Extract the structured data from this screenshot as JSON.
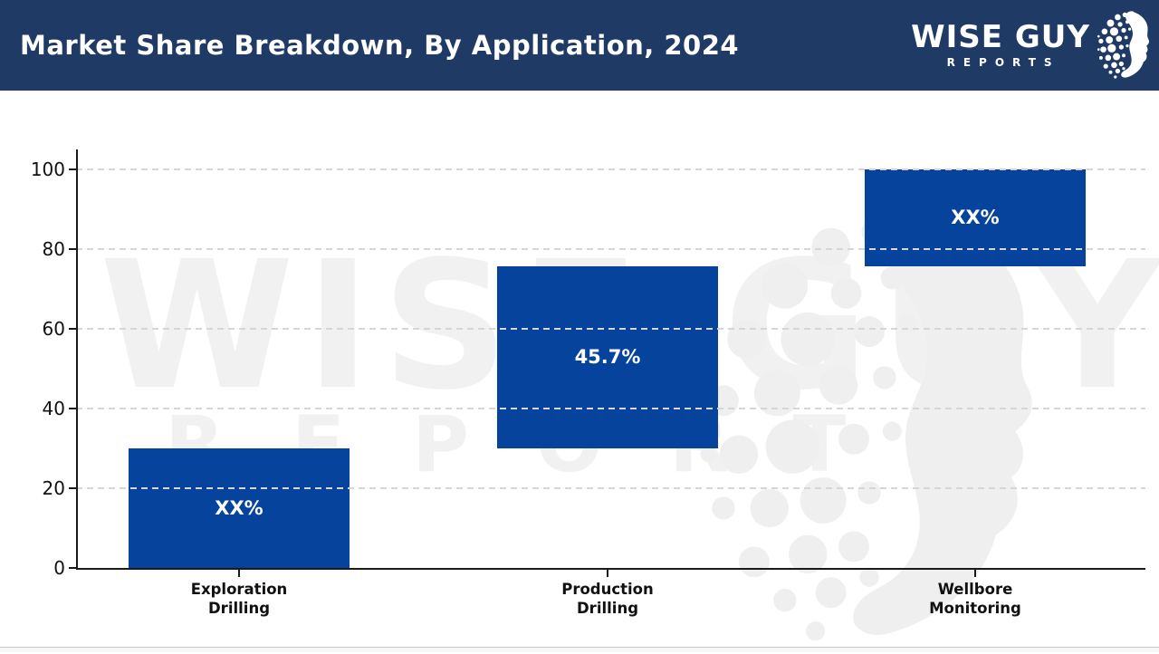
{
  "header": {
    "title": "Market Share Breakdown, By Application, 2024",
    "logo": {
      "line1": "WISE GUY",
      "line2": "REPORTS"
    }
  },
  "watermark": {
    "line1": "WISE GUY",
    "line2": "REPORTS"
  },
  "colors": {
    "header_bg": "#1f3a64",
    "bar": "#05439c",
    "grid": "#d6d6d6",
    "axis": "#1a1a1a",
    "watermark": "#f1f1f1",
    "bar_label": "#ffffff"
  },
  "chart_data": {
    "type": "bar",
    "variant": "waterfall-stacked",
    "title": "Market Share Breakdown, By Application, 2024",
    "categories": [
      "Exploration Drilling",
      "Production Drilling",
      "Wellbore Monitoring"
    ],
    "categories_lines": [
      [
        "Exploration",
        "Drilling"
      ],
      [
        "Production",
        "Drilling"
      ],
      [
        "Wellbore",
        "Monitoring"
      ]
    ],
    "segments": [
      {
        "category": "Exploration Drilling",
        "start": 0,
        "end": 30,
        "label": "XX%"
      },
      {
        "category": "Production Drilling",
        "start": 30,
        "end": 75.7,
        "label": "45.7%",
        "value": 45.7
      },
      {
        "category": "Wellbore Monitoring",
        "start": 75.7,
        "end": 100,
        "label": "XX%"
      }
    ],
    "yticks": [
      0,
      20,
      40,
      60,
      80,
      100
    ],
    "ylim": [
      0,
      105
    ],
    "grid": "horizontal-dashed",
    "legend": "none"
  }
}
